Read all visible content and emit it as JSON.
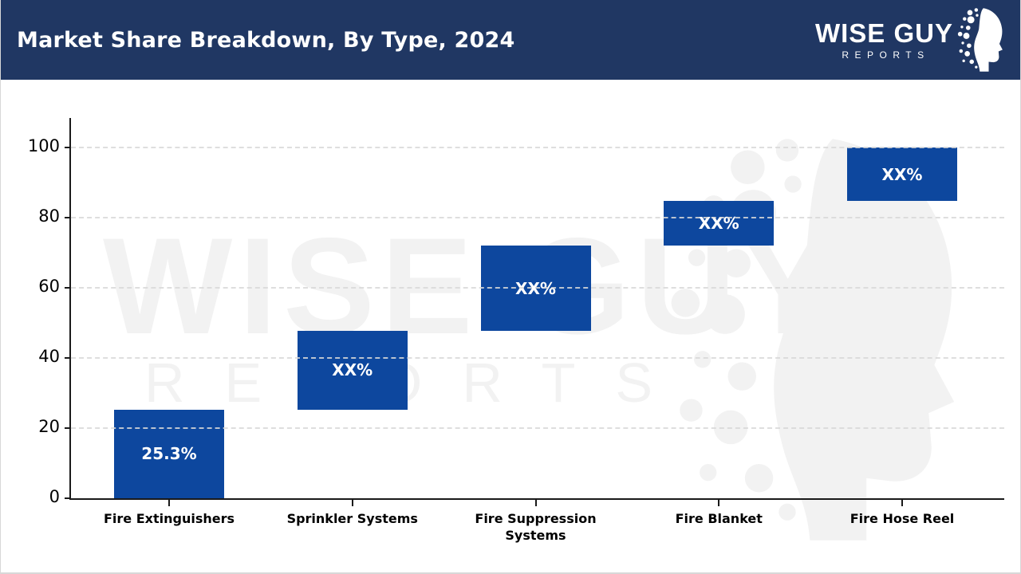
{
  "header": {
    "title": "Market Share Breakdown, By Type, 2024",
    "logo": {
      "name_line": "WISE GUY",
      "sub_line": "REPORTS"
    }
  },
  "watermark": {
    "name_line": "WISE GUY",
    "sub_line": "REPORTS"
  },
  "chart_data": {
    "type": "bar",
    "variant": "waterfall",
    "title": "Market Share Breakdown, By Type, 2024",
    "categories": [
      "Fire Extinguishers",
      "Sprinkler Systems",
      "Fire Suppression Systems",
      "Fire Blanket",
      "Fire Hose Reel"
    ],
    "bars": [
      {
        "start": 0,
        "end": 25.3,
        "label": "25.3%"
      },
      {
        "start": 25.3,
        "end": 47.7,
        "label": "XX%"
      },
      {
        "start": 47.7,
        "end": 72.0,
        "label": "XX%"
      },
      {
        "start": 72.0,
        "end": 84.7,
        "label": "XX%"
      },
      {
        "start": 84.7,
        "end": 100,
        "label": "XX%"
      }
    ],
    "xlabel": "",
    "ylabel": "",
    "ylim": [
      0,
      100
    ],
    "yticks": [
      0,
      20,
      40,
      60,
      80,
      100
    ],
    "grid": "horizontal-dashed",
    "legend": "none",
    "colors": {
      "bar": "#0d479e",
      "bar_label": "#ffffff",
      "grid": "#d9d9d9",
      "axis": "#1a1a1a",
      "header_bg": "#203763",
      "watermark": "#f2f2f2"
    }
  }
}
